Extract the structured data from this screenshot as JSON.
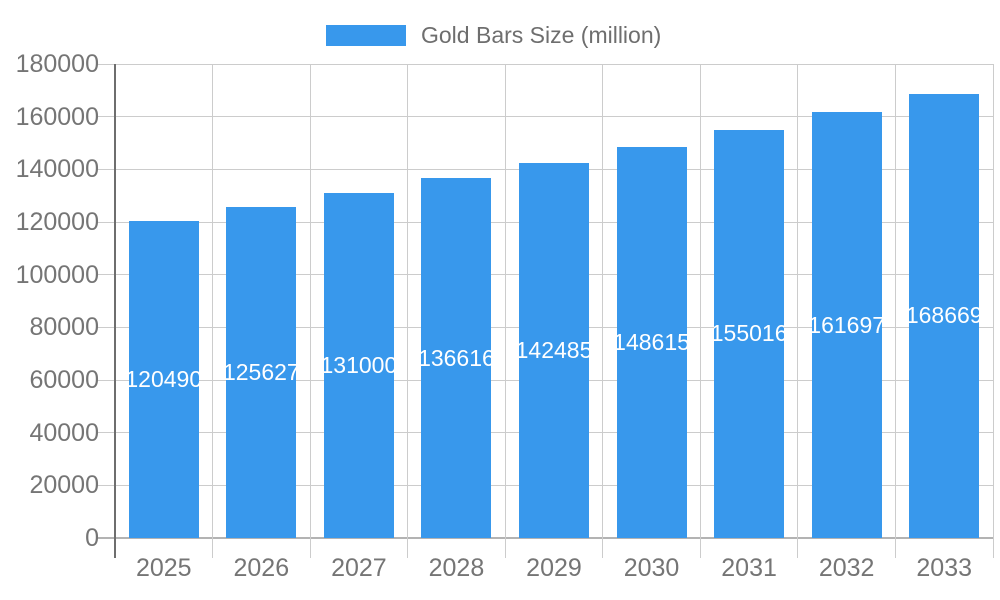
{
  "chart_data": {
    "type": "bar",
    "title": "",
    "xlabel": "",
    "ylabel": "",
    "legend": {
      "label": "Gold Bars Size (million)",
      "position": "top"
    },
    "categories": [
      "2025",
      "2026",
      "2027",
      "2028",
      "2029",
      "2030",
      "2031",
      "2032",
      "2033"
    ],
    "series": [
      {
        "name": "Gold Bars Size (million)",
        "values": [
          120490,
          125627,
          131000,
          136616,
          142485,
          148615,
          155016,
          161697,
          168669
        ]
      }
    ],
    "ylim": [
      0,
      180000
    ],
    "ytick_step": 20000,
    "ytick_labels": [
      "0",
      "20000",
      "40000",
      "60000",
      "80000",
      "100000",
      "120000",
      "140000",
      "160000",
      "180000"
    ],
    "grid": true,
    "colors": {
      "bar": "#3898ec",
      "gridline": "#cccccc",
      "baseline": "#b3b3b3",
      "axis_line": "#6e6e6e",
      "axis_text": "#757575",
      "legend_text": "#6e6e6e",
      "bar_value_text": "#ffffff"
    }
  }
}
